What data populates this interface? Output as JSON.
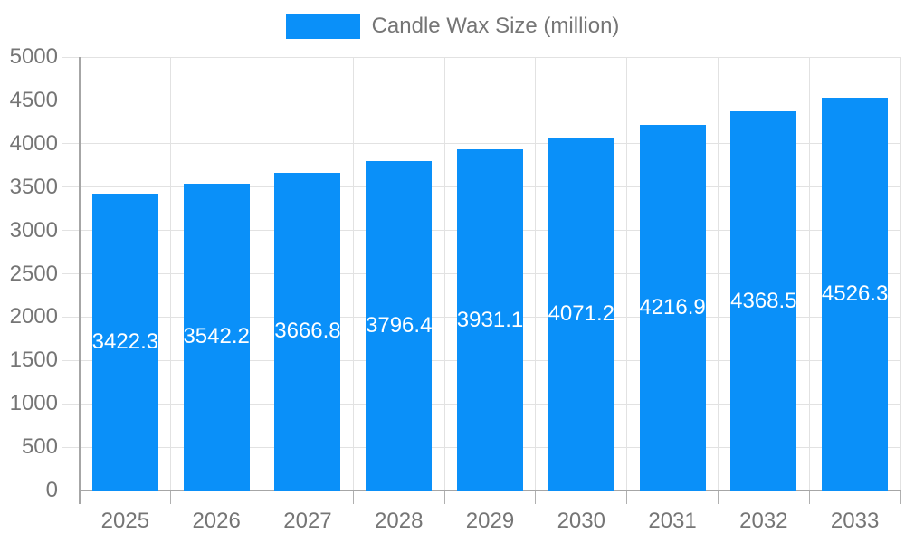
{
  "chart_data": {
    "type": "bar",
    "title": "Candle Wax Size (million)",
    "legend_position": "top-center",
    "categories": [
      "2025",
      "2026",
      "2027",
      "2028",
      "2029",
      "2030",
      "2031",
      "2032",
      "2033"
    ],
    "series": [
      {
        "name": "Candle Wax Size (million)",
        "values": [
          3422.3,
          3542.2,
          3666.8,
          3796.4,
          3931.1,
          4071.2,
          4216.9,
          4368.5,
          4526.3
        ]
      }
    ],
    "value_labels": [
      "3422.3",
      "3542.2",
      "3666.8",
      "3796.4",
      "3931.1",
      "4071.2",
      "4216.9",
      "4368.5",
      "4526.3"
    ],
    "xlabel": "",
    "ylabel": "",
    "ylim": [
      0,
      5000
    ],
    "ytick_step": 500,
    "ytick_labels": [
      "0",
      "500",
      "1000",
      "1500",
      "2000",
      "2500",
      "3000",
      "3500",
      "4000",
      "4500",
      "5000"
    ],
    "grid": true,
    "colors": {
      "bar": "#0a90f9",
      "grid": "#e2e2e2",
      "axis": "#a6a6a6",
      "tick_x": "#b0b0b0",
      "label": "#757575",
      "value_label": "#ffffff",
      "background": "#ffffff"
    }
  }
}
